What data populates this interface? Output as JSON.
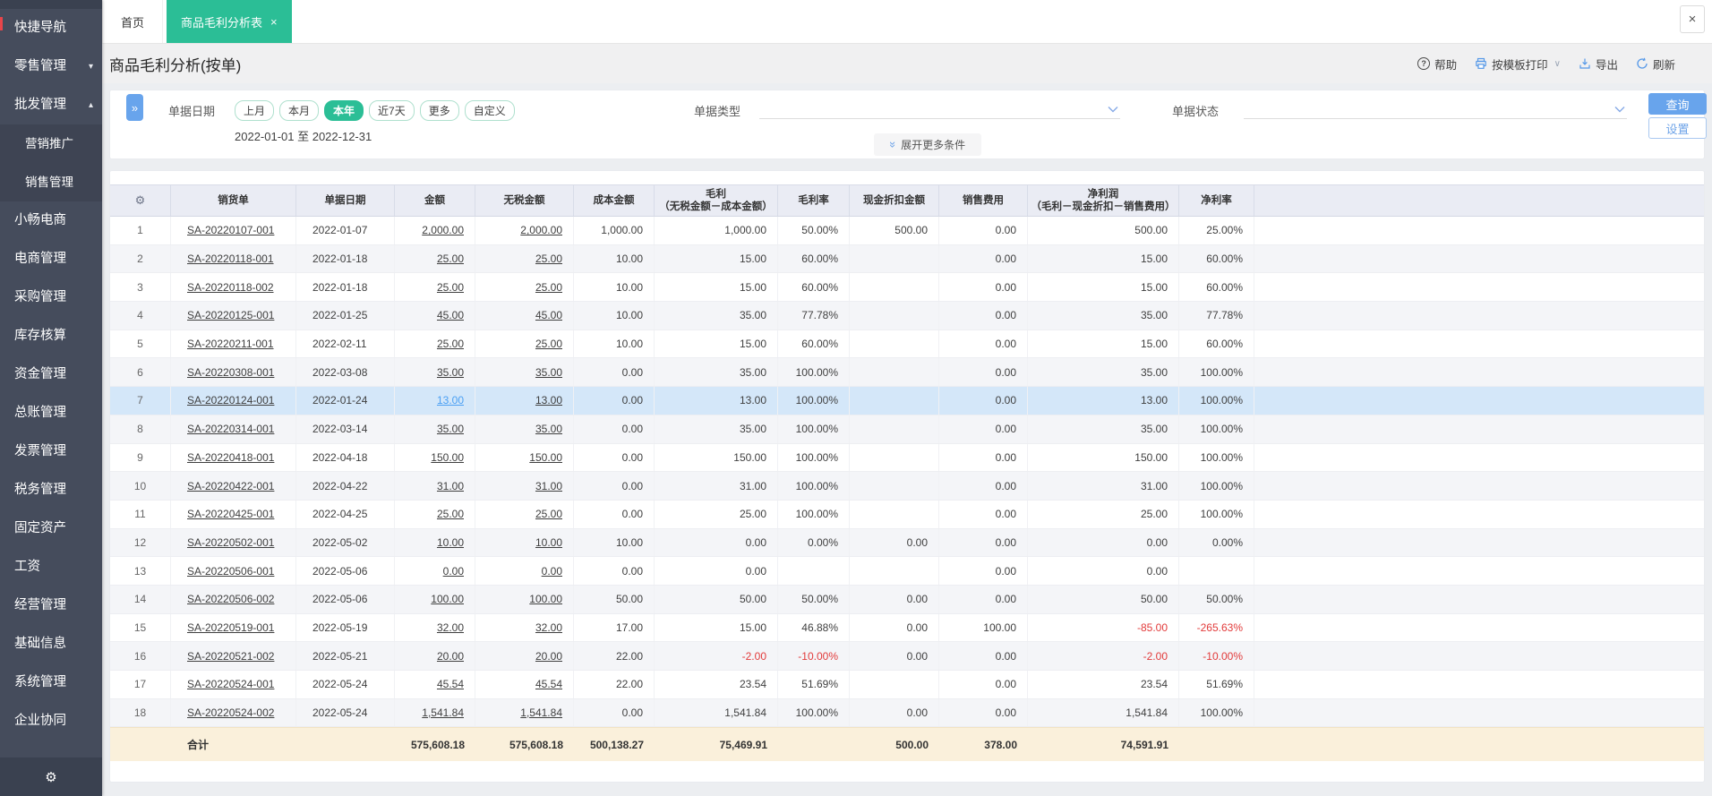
{
  "window": {
    "close_label": "×"
  },
  "sidebar": {
    "items": [
      {
        "label": "快捷导航"
      },
      {
        "label": "零售管理",
        "arrow": "down"
      },
      {
        "label": "批发管理",
        "arrow": "up"
      },
      {
        "label": "营销推广",
        "sub": true
      },
      {
        "label": "销售管理",
        "sub": true
      },
      {
        "label": "小畅电商"
      },
      {
        "label": "电商管理"
      },
      {
        "label": "采购管理"
      },
      {
        "label": "库存核算"
      },
      {
        "label": "资金管理"
      },
      {
        "label": "总账管理"
      },
      {
        "label": "发票管理"
      },
      {
        "label": "税务管理"
      },
      {
        "label": "固定资产"
      },
      {
        "label": "工资"
      },
      {
        "label": "经营管理"
      },
      {
        "label": "基础信息"
      },
      {
        "label": "系统管理"
      },
      {
        "label": "企业协同"
      }
    ],
    "gear_icon": "settings-gear"
  },
  "tabs": {
    "home": "首页",
    "active": "商品毛利分析表",
    "active_close": "×"
  },
  "page": {
    "title": "商品毛利分析(按单)",
    "actions": {
      "help": "帮助",
      "print": "按模板打印",
      "export": "导出",
      "refresh": "刷新"
    }
  },
  "filters": {
    "date_label": "单据日期",
    "pills": [
      "上月",
      "本月",
      "本年",
      "近7天",
      "更多",
      "自定义"
    ],
    "active_pill": "本年",
    "date_range": "2022-01-01 至 2022-12-31",
    "doc_type_label": "单据类型",
    "doc_status_label": "单据状态",
    "expand_label": "展开更多条件",
    "search_label": "查询",
    "settings_label": "设置"
  },
  "table": {
    "columns": [
      "",
      "销货单",
      "单据日期",
      "金额",
      "无税金额",
      "成本金额",
      "毛利\n（无税金额－成本金额）",
      "毛利率",
      "现金折扣金额",
      "销售费用",
      "净利润\n（毛利－现金折扣－销售费用）",
      "净利率"
    ],
    "link_cols": [
      1,
      3,
      4
    ],
    "selected_row": 7,
    "blue_cell": [
      7,
      3
    ],
    "red_cells": {
      "15": [
        10,
        11
      ],
      "16": [
        6,
        7,
        10,
        11
      ]
    },
    "rows": [
      [
        "1",
        "SA-20220107-001",
        "2022-01-07",
        "2,000.00",
        "2,000.00",
        "1,000.00",
        "1,000.00",
        "50.00%",
        "500.00",
        "0.00",
        "500.00",
        "25.00%"
      ],
      [
        "2",
        "SA-20220118-001",
        "2022-01-18",
        "25.00",
        "25.00",
        "10.00",
        "15.00",
        "60.00%",
        "",
        "0.00",
        "15.00",
        "60.00%"
      ],
      [
        "3",
        "SA-20220118-002",
        "2022-01-18",
        "25.00",
        "25.00",
        "10.00",
        "15.00",
        "60.00%",
        "",
        "0.00",
        "15.00",
        "60.00%"
      ],
      [
        "4",
        "SA-20220125-001",
        "2022-01-25",
        "45.00",
        "45.00",
        "10.00",
        "35.00",
        "77.78%",
        "",
        "0.00",
        "35.00",
        "77.78%"
      ],
      [
        "5",
        "SA-20220211-001",
        "2022-02-11",
        "25.00",
        "25.00",
        "10.00",
        "15.00",
        "60.00%",
        "",
        "0.00",
        "15.00",
        "60.00%"
      ],
      [
        "6",
        "SA-20220308-001",
        "2022-03-08",
        "35.00",
        "35.00",
        "0.00",
        "35.00",
        "100.00%",
        "",
        "0.00",
        "35.00",
        "100.00%"
      ],
      [
        "7",
        "SA-20220124-001",
        "2022-01-24",
        "13.00",
        "13.00",
        "0.00",
        "13.00",
        "100.00%",
        "",
        "0.00",
        "13.00",
        "100.00%"
      ],
      [
        "8",
        "SA-20220314-001",
        "2022-03-14",
        "35.00",
        "35.00",
        "0.00",
        "35.00",
        "100.00%",
        "",
        "0.00",
        "35.00",
        "100.00%"
      ],
      [
        "9",
        "SA-20220418-001",
        "2022-04-18",
        "150.00",
        "150.00",
        "0.00",
        "150.00",
        "100.00%",
        "",
        "0.00",
        "150.00",
        "100.00%"
      ],
      [
        "10",
        "SA-20220422-001",
        "2022-04-22",
        "31.00",
        "31.00",
        "0.00",
        "31.00",
        "100.00%",
        "",
        "0.00",
        "31.00",
        "100.00%"
      ],
      [
        "11",
        "SA-20220425-001",
        "2022-04-25",
        "25.00",
        "25.00",
        "0.00",
        "25.00",
        "100.00%",
        "",
        "0.00",
        "25.00",
        "100.00%"
      ],
      [
        "12",
        "SA-20220502-001",
        "2022-05-02",
        "10.00",
        "10.00",
        "10.00",
        "0.00",
        "0.00%",
        "0.00",
        "0.00",
        "0.00",
        "0.00%"
      ],
      [
        "13",
        "SA-20220506-001",
        "2022-05-06",
        "0.00",
        "0.00",
        "0.00",
        "0.00",
        "",
        "",
        "0.00",
        "0.00",
        ""
      ],
      [
        "14",
        "SA-20220506-002",
        "2022-05-06",
        "100.00",
        "100.00",
        "50.00",
        "50.00",
        "50.00%",
        "0.00",
        "0.00",
        "50.00",
        "50.00%"
      ],
      [
        "15",
        "SA-20220519-001",
        "2022-05-19",
        "32.00",
        "32.00",
        "17.00",
        "15.00",
        "46.88%",
        "0.00",
        "100.00",
        "-85.00",
        "-265.63%"
      ],
      [
        "16",
        "SA-20220521-002",
        "2022-05-21",
        "20.00",
        "20.00",
        "22.00",
        "-2.00",
        "-10.00%",
        "0.00",
        "0.00",
        "-2.00",
        "-10.00%"
      ],
      [
        "17",
        "SA-20220524-001",
        "2022-05-24",
        "45.54",
        "45.54",
        "22.00",
        "23.54",
        "51.69%",
        "",
        "0.00",
        "23.54",
        "51.69%"
      ],
      [
        "18",
        "SA-20220524-002",
        "2022-05-24",
        "1,541.84",
        "1,541.84",
        "0.00",
        "1,541.84",
        "100.00%",
        "0.00",
        "0.00",
        "1,541.84",
        "100.00%"
      ]
    ],
    "total": {
      "cells": [
        "",
        "合计",
        "",
        "575,608.18",
        "575,608.18",
        "500,138.27",
        "75,469.91",
        "",
        "500.00",
        "378.00",
        "74,591.91",
        ""
      ]
    }
  },
  "colors": {
    "accent_green": "#2BBE96",
    "accent_blue": "#68A4EC",
    "sidebar_bg": "#454C5C",
    "selected_row": "#D4E7F9",
    "total_row_bg": "#FAF0DB",
    "table_header_bg": "#EAECF4",
    "negative": "#E23B3B"
  }
}
